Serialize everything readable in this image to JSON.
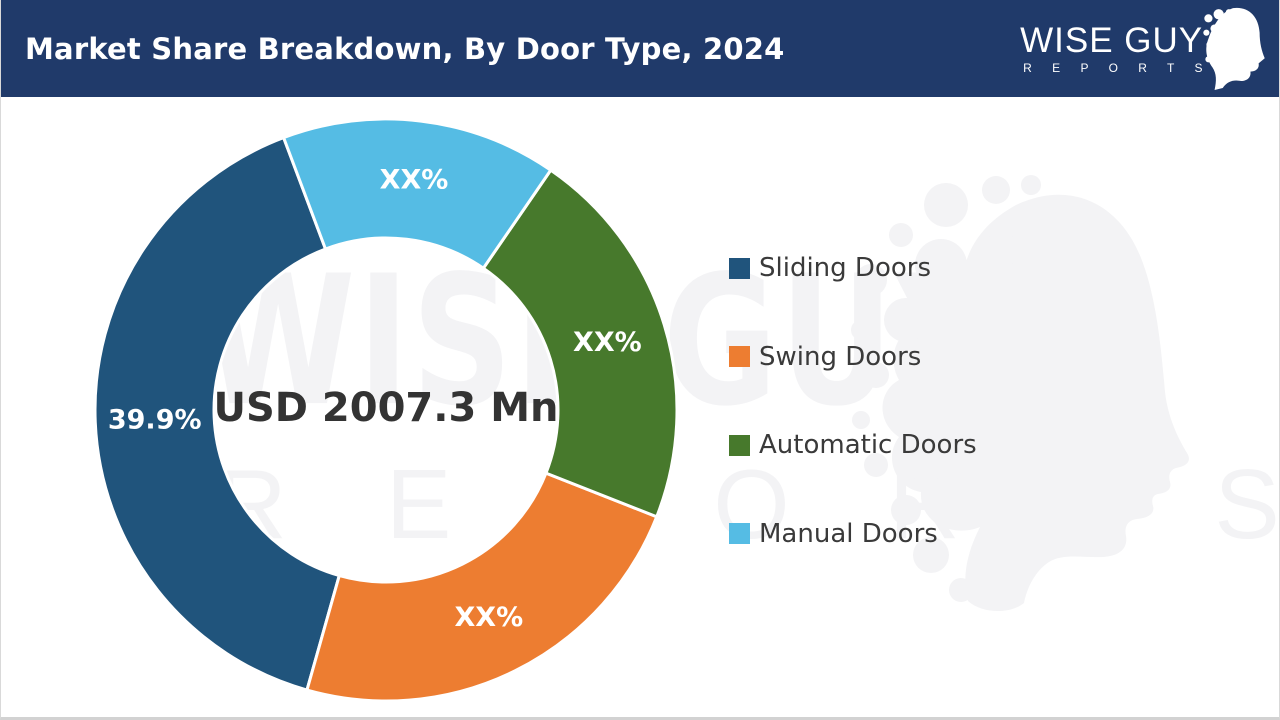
{
  "header": {
    "title": "Market Share Breakdown, By Door Type, 2024",
    "logo": {
      "line1": "WISE GUY",
      "line2": "R E P O R T S"
    }
  },
  "chart_data": {
    "type": "donut",
    "title": "Market Share Breakdown, By Door Type, 2024",
    "center_label": "USD 2007.3 Mn",
    "rotation_deg": 339.4,
    "legend_position": "right",
    "segments": [
      {
        "name": "Sliding Doors",
        "value_pct": 39.9,
        "label": "39.9%",
        "color": "#20547c"
      },
      {
        "name": "Swing Doors",
        "value_pct": 23.4,
        "label": "XX%",
        "color": "#ed7d31"
      },
      {
        "name": "Automatic Doors",
        "value_pct": 21.4,
        "label": "XX%",
        "color": "#47792c"
      },
      {
        "name": "Manual Doors",
        "value_pct": 15.3,
        "label": "XX%",
        "color": "#55bce4"
      }
    ]
  },
  "watermark": {
    "line1": "WISE GUY",
    "line2": "R E P O R T S"
  },
  "colors": {
    "header_bg": "#203a6a",
    "center_text": "#333333",
    "legend_text": "#3a3a3a",
    "watermark": "#f3f3f5",
    "segment_gap": "#ffffff"
  }
}
